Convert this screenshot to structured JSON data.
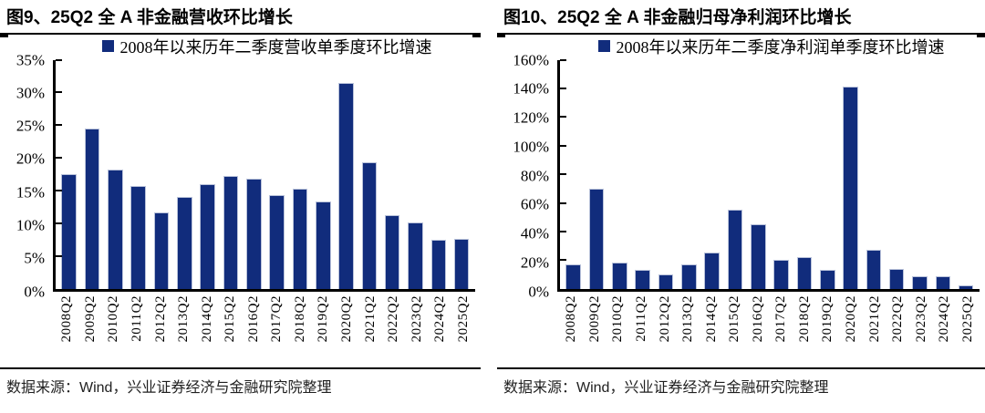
{
  "source_note": "数据来源：Wind，兴业证券经济与金融研究院整理",
  "colors": {
    "bar": "#112c7c",
    "axis": "#000000",
    "background": "#ffffff"
  },
  "chart_data": [
    {
      "type": "bar",
      "title": "图9、25Q2 全 A 非金融营收环比增长",
      "legend": "2008年以来历年二季度营收单季度环比增速",
      "categories": [
        "2008Q2",
        "2009Q2",
        "2010Q2",
        "2011Q2",
        "2012Q2",
        "2013Q2",
        "2014Q2",
        "2015Q2",
        "2016Q2",
        "2017Q2",
        "2018Q2",
        "2019Q2",
        "2020Q2",
        "2021Q2",
        "2022Q2",
        "2023Q2",
        "2024Q2",
        "2025Q2"
      ],
      "values": [
        17.5,
        24.5,
        18.2,
        15.7,
        11.7,
        14.0,
        16.0,
        17.3,
        16.8,
        14.3,
        15.3,
        13.4,
        31.4,
        19.3,
        11.2,
        10.2,
        7.5,
        7.6
      ],
      "unit": "%",
      "ylim": [
        0,
        35
      ],
      "ytick_step": 5,
      "ytick_labels": [
        "35%",
        "30%",
        "25%",
        "20%",
        "15%",
        "10%",
        "5%",
        "0%"
      ],
      "legend_position": "top-center",
      "grid": false,
      "bar_color": "#112c7c"
    },
    {
      "type": "bar",
      "title": "图10、25Q2 全 A 非金融归母净利润环比增长",
      "legend": "2008年以来历年二季度净利润单季度环比增速",
      "categories": [
        "2008Q2",
        "2009Q2",
        "2010Q2",
        "2011Q2",
        "2012Q2",
        "2013Q2",
        "2014Q2",
        "2015Q2",
        "2016Q2",
        "2017Q2",
        "2018Q2",
        "2019Q2",
        "2020Q2",
        "2021Q2",
        "2022Q2",
        "2023Q2",
        "2024Q2",
        "2025Q2"
      ],
      "values": [
        17,
        70,
        18,
        13,
        10,
        17,
        25,
        55,
        45,
        20,
        22,
        13,
        141,
        27,
        14,
        9,
        9,
        2.5
      ],
      "unit": "%",
      "ylim": [
        0,
        160
      ],
      "ytick_step": 20,
      "ytick_labels": [
        "160%",
        "140%",
        "120%",
        "100%",
        "80%",
        "60%",
        "40%",
        "20%",
        "0%"
      ],
      "legend_position": "top-center",
      "grid": false,
      "bar_color": "#112c7c"
    }
  ]
}
